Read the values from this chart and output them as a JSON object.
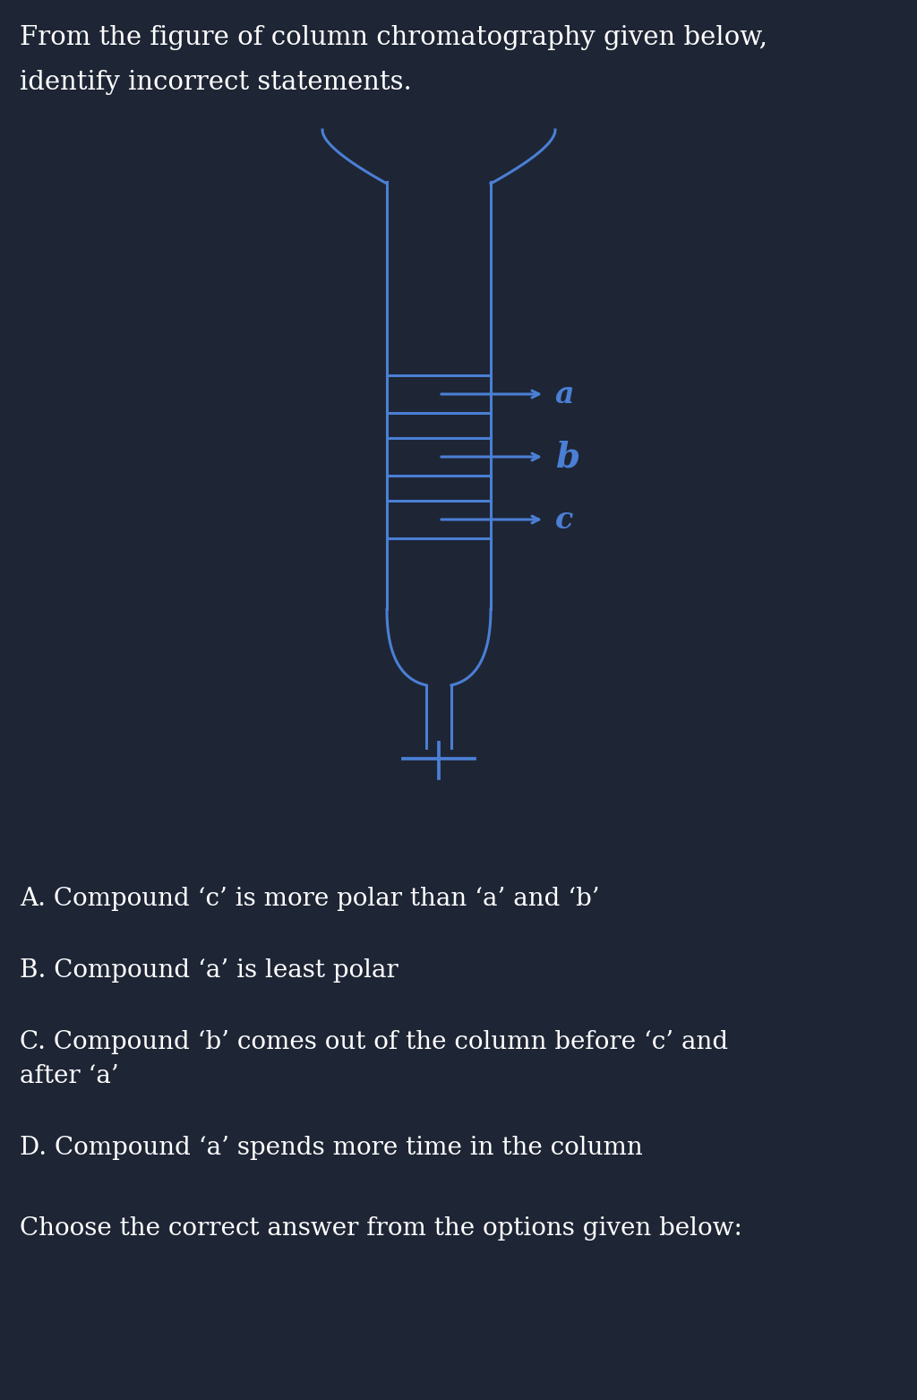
{
  "background_color": "#1e2535",
  "title_line1": "From the figure of column chromatography given below,",
  "title_line2": "identify incorrect statements.",
  "title_color": "#ffffff",
  "title_fontsize": 21,
  "diagram_color": "#4a7fd4",
  "label_color": "#4a7fd4",
  "text_color": "#ffffff",
  "options": [
    "A. Compound ‘c’ is more polar than ‘a’ and ‘b’",
    "B. Compound ‘a’ is least polar",
    "C. Compound ‘b’ comes out of the column before ‘c’ and\nafter ‘a’",
    "D. Compound ‘a’ spends more time in the column",
    "Choose the correct answer from the options given below:"
  ],
  "options_fontsize": 20,
  "band_labels": [
    "a",
    "b",
    "c"
  ]
}
